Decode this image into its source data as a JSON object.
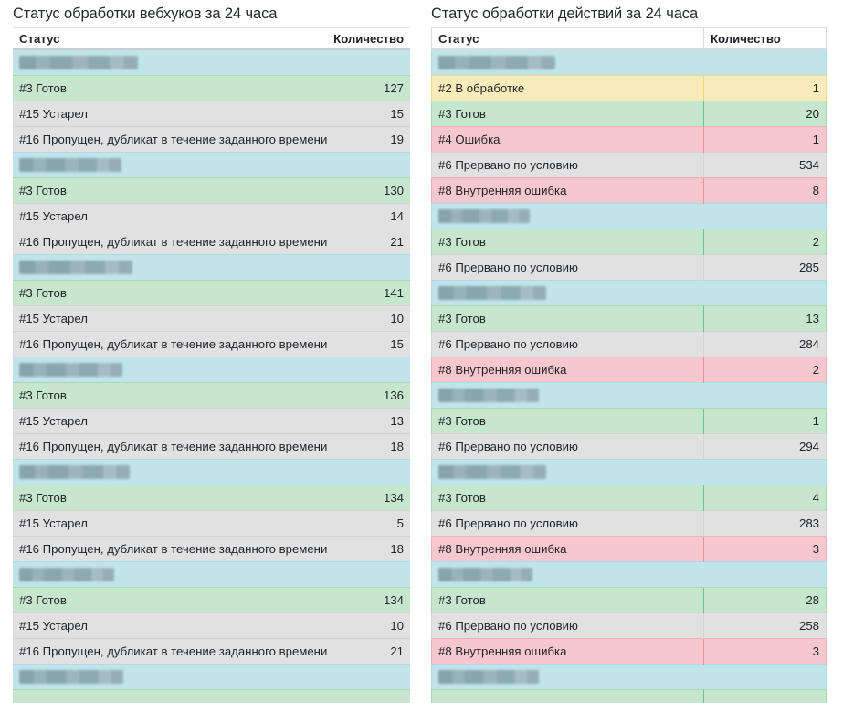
{
  "left_table": {
    "title": "Статус обработки вебхуков за 24 часа",
    "columns": {
      "status": "Статус",
      "count": "Количество"
    },
    "groups": [
      {
        "redacted_header": true,
        "redacted_width": 130,
        "rows": [
          {
            "status": "#3 Готов",
            "count": "127",
            "variant": "success"
          },
          {
            "status": "#15 Устарел",
            "count": "15",
            "variant": "secondary"
          },
          {
            "status": "#16 Пропущен, дубликат в течение заданного времени",
            "count": "19",
            "variant": "secondary"
          }
        ]
      },
      {
        "redacted_header": true,
        "redacted_width": 112,
        "rows": [
          {
            "status": "#3 Готов",
            "count": "130",
            "variant": "success"
          },
          {
            "status": "#15 Устарел",
            "count": "14",
            "variant": "secondary"
          },
          {
            "status": "#16 Пропущен, дубликат в течение заданного времени",
            "count": "21",
            "variant": "secondary"
          }
        ]
      },
      {
        "redacted_header": true,
        "redacted_width": 124,
        "rows": [
          {
            "status": "#3 Готов",
            "count": "141",
            "variant": "success"
          },
          {
            "status": "#15 Устарел",
            "count": "10",
            "variant": "secondary"
          },
          {
            "status": "#16 Пропущен, дубликат в течение заданного времени",
            "count": "15",
            "variant": "secondary"
          }
        ]
      },
      {
        "redacted_header": true,
        "redacted_width": 113,
        "rows": [
          {
            "status": "#3 Готов",
            "count": "136",
            "variant": "success"
          },
          {
            "status": "#15 Устарел",
            "count": "13",
            "variant": "secondary"
          },
          {
            "status": "#16 Пропущен, дубликат в течение заданного времени",
            "count": "18",
            "variant": "secondary"
          }
        ]
      },
      {
        "redacted_header": true,
        "redacted_width": 121,
        "rows": [
          {
            "status": "#3 Готов",
            "count": "134",
            "variant": "success"
          },
          {
            "status": "#15 Устарел",
            "count": "5",
            "variant": "secondary"
          },
          {
            "status": "#16 Пропущен, дубликат в течение заданного времени",
            "count": "18",
            "variant": "secondary"
          }
        ]
      },
      {
        "redacted_header": true,
        "redacted_width": 104,
        "rows": [
          {
            "status": "#3 Готов",
            "count": "134",
            "variant": "success"
          },
          {
            "status": "#15 Устарел",
            "count": "10",
            "variant": "secondary"
          },
          {
            "status": "#16 Пропущен, дубликат в течение заданного времени",
            "count": "21",
            "variant": "secondary"
          }
        ]
      },
      {
        "redacted_header": true,
        "redacted_width": 114,
        "rows": []
      }
    ],
    "partial_row_variant": "success"
  },
  "right_table": {
    "title": "Статус обработки действий за 24 часа",
    "columns": {
      "status": "Статус",
      "count": "Количество"
    },
    "groups": [
      {
        "redacted_header": true,
        "redacted_width": 128,
        "rows": [
          {
            "status": "#2 В обработке",
            "count": "1",
            "variant": "warning"
          },
          {
            "status": "#3 Готов",
            "count": "20",
            "variant": "success"
          },
          {
            "status": "#4 Ошибка",
            "count": "1",
            "variant": "danger"
          },
          {
            "status": "#6 Прервано по условию",
            "count": "534",
            "variant": "secondary"
          },
          {
            "status": "#8 Внутренняя ошибка",
            "count": "8",
            "variant": "danger"
          }
        ]
      },
      {
        "redacted_header": true,
        "redacted_width": 100,
        "rows": [
          {
            "status": "#3 Готов",
            "count": "2",
            "variant": "success"
          },
          {
            "status": "#6 Прервано по условию",
            "count": "285",
            "variant": "secondary"
          }
        ]
      },
      {
        "redacted_header": true,
        "redacted_width": 118,
        "rows": [
          {
            "status": "#3 Готов",
            "count": "13",
            "variant": "success"
          },
          {
            "status": "#6 Прервано по условию",
            "count": "284",
            "variant": "secondary"
          },
          {
            "status": "#8 Внутренняя ошибка",
            "count": "2",
            "variant": "danger"
          }
        ]
      },
      {
        "redacted_header": true,
        "redacted_width": 110,
        "rows": [
          {
            "status": "#3 Готов",
            "count": "1",
            "variant": "success"
          },
          {
            "status": "#6 Прервано по условию",
            "count": "294",
            "variant": "secondary"
          }
        ]
      },
      {
        "redacted_header": true,
        "redacted_width": 118,
        "rows": [
          {
            "status": "#3 Готов",
            "count": "4",
            "variant": "success"
          },
          {
            "status": "#6 Прервано по условию",
            "count": "283",
            "variant": "secondary"
          },
          {
            "status": "#8 Внутренняя ошибка",
            "count": "3",
            "variant": "danger"
          }
        ]
      },
      {
        "redacted_header": true,
        "redacted_width": 103,
        "rows": [
          {
            "status": "#3 Готов",
            "count": "28",
            "variant": "success"
          },
          {
            "status": "#6 Прервано по условию",
            "count": "258",
            "variant": "secondary"
          },
          {
            "status": "#8 Внутренняя ошибка",
            "count": "3",
            "variant": "danger"
          }
        ]
      },
      {
        "redacted_header": true,
        "redacted_width": 110,
        "rows": []
      }
    ],
    "partial_row_variant": "success"
  },
  "colors": {
    "info_bg": "#c1e4eb",
    "success_bg": "#c6e7ce",
    "secondary_bg": "#e1e1e2",
    "warning_bg": "#faecba",
    "danger_bg": "#f6c7cc",
    "redacted_blob": "#93acb4"
  }
}
